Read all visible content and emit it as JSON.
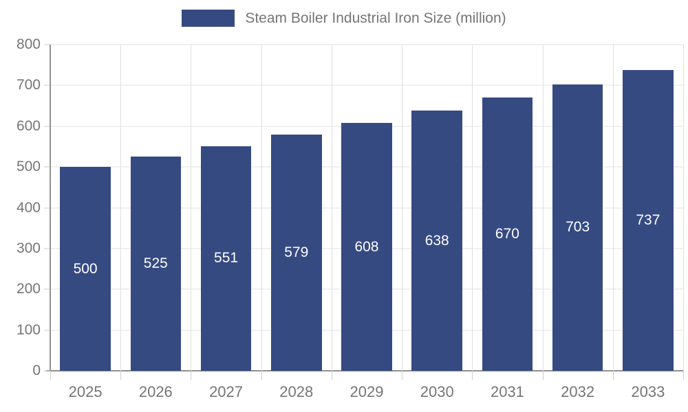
{
  "chart_data": {
    "type": "bar",
    "title": "Steam Boiler Industrial Iron Size (million)",
    "legend_entries": [
      "Steam Boiler Industrial Iron Size (million)"
    ],
    "legend_position": "top-center",
    "categories": [
      "2025",
      "2026",
      "2027",
      "2028",
      "2029",
      "2030",
      "2031",
      "2032",
      "2033"
    ],
    "series": [
      {
        "name": "Steam Boiler Industrial Iron Size (million)",
        "values": [
          500,
          525,
          551,
          579,
          608,
          638,
          670,
          703,
          737
        ]
      }
    ],
    "data_labels_shown": true,
    "xlabel": "",
    "ylabel": "",
    "ylim": [
      0,
      800
    ],
    "ytick_step": 100,
    "ytick_labels": [
      "0",
      "100",
      "200",
      "300",
      "400",
      "500",
      "600",
      "700",
      "800"
    ],
    "grid": true,
    "colors": {
      "bar": "#364a82",
      "value_label": "#ffffff",
      "axis_text": "#757575",
      "grid_line": "#e0e0e0",
      "axis_line": "#909090",
      "tick": "#cccccc",
      "background": "#ffffff"
    }
  }
}
